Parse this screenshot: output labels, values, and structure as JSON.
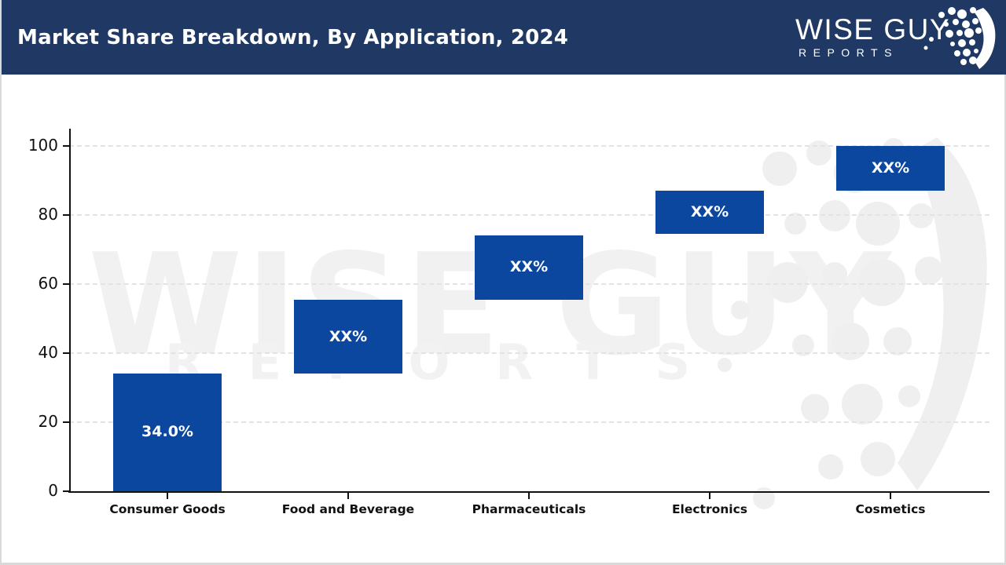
{
  "header": {
    "title": "Market Share Breakdown, By Application, 2024",
    "logo": {
      "line1": "WISE GUY",
      "line2": "REPORTS"
    }
  },
  "watermark": {
    "line1": "WISE GUY",
    "line2": "REPORTS"
  },
  "colors": {
    "header_bg": "#1f3864",
    "bar": "#0b479f",
    "bar_label": "#ffffff",
    "grid": "#e3e3e3",
    "axis": "#111111",
    "watermark": "#f1f1f1"
  },
  "chart_data": {
    "type": "bar",
    "subtype": "waterfall",
    "title": "Market Share Breakdown, By Application, 2024",
    "xlabel": "",
    "ylabel": "",
    "ylim": [
      0,
      105
    ],
    "yticks": [
      0,
      20,
      40,
      60,
      80,
      100
    ],
    "grid": "horizontal-dashed",
    "categories": [
      "Consumer Goods",
      "Food and Beverage",
      "Pharmaceuticals",
      "Electronics",
      "Cosmetics"
    ],
    "segments": [
      {
        "category": "Consumer Goods",
        "start": 0,
        "end": 34,
        "label": "34.0%"
      },
      {
        "category": "Food and Beverage",
        "start": 34,
        "end": 55.5,
        "label": "XX%"
      },
      {
        "category": "Pharmaceuticals",
        "start": 55.5,
        "end": 74,
        "label": "XX%"
      },
      {
        "category": "Electronics",
        "start": 74.5,
        "end": 87,
        "label": "XX%"
      },
      {
        "category": "Cosmetics",
        "start": 87,
        "end": 100,
        "label": "XX%"
      }
    ]
  }
}
